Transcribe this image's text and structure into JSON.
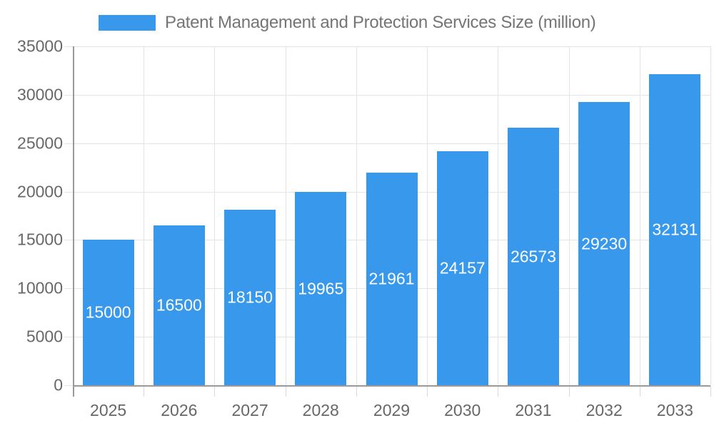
{
  "legend": {
    "label": "Patent Management and Protection Services Size (million)"
  },
  "chart_data": {
    "type": "bar",
    "title": "Patent Management and Protection Services Size (million)",
    "categories": [
      "2025",
      "2026",
      "2027",
      "2028",
      "2029",
      "2030",
      "2031",
      "2032",
      "2033"
    ],
    "values": [
      15000,
      16500,
      18150,
      19965,
      21961,
      24157,
      26573,
      29230,
      32131
    ],
    "series_name": "Patent Management and Protection Services Size (million)",
    "xlabel": "",
    "ylabel": "",
    "ylim": [
      0,
      35000
    ],
    "ytick_step": 5000,
    "yticks": [
      0,
      5000,
      10000,
      15000,
      20000,
      25000,
      30000,
      35000
    ],
    "grid": true,
    "legend_position": "top",
    "value_labels": "centered-inside-white",
    "colors": {
      "bar": "#3798EC",
      "grid": "#E4E4E4",
      "axis": "#9A9A9A",
      "tick_text": "#676767",
      "title_text": "#757575",
      "bar_label_text": "#FFFFFF",
      "background": "#FFFFFF"
    }
  }
}
